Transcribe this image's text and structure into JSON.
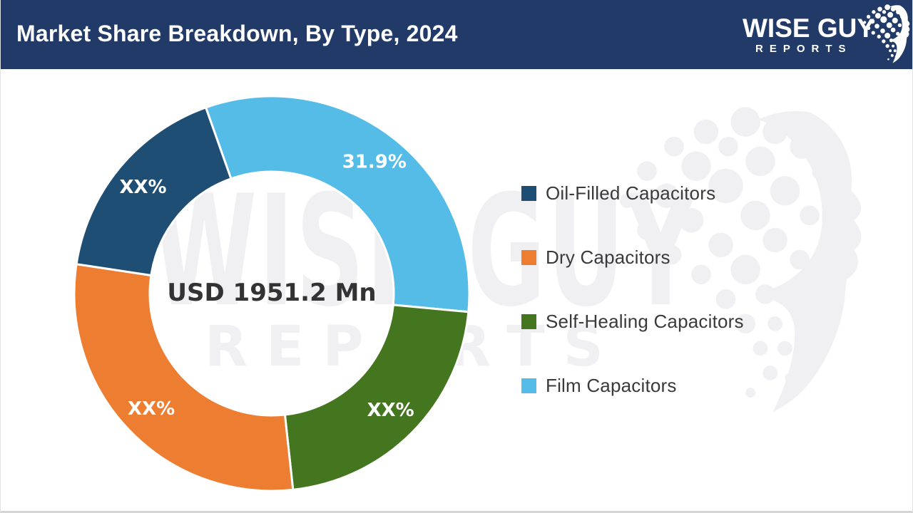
{
  "header": {
    "title": "Market Share Breakdown, By Type, 2024"
  },
  "logo": {
    "name": "WISE GUY",
    "subtitle": "REPORTS"
  },
  "watermark": {
    "line1": "WISE GUY",
    "line2": "REPORTS"
  },
  "chart_data": {
    "type": "donut",
    "title": "Market Share Breakdown, By Type, 2024",
    "center_label": "USD 1951.2 Mn",
    "start_angle_deg": -19.5,
    "legend_position": "right",
    "segments": [
      {
        "name": "Film Capacitors",
        "value_pct": 31.9,
        "label": "31.9%",
        "color": "#54BCE6"
      },
      {
        "name": "Self-Healing Capacitors",
        "value_pct": 21.8,
        "label": "XX%",
        "color": "#44761F"
      },
      {
        "name": "Dry Capacitors",
        "value_pct": 29.1,
        "label": "XX%",
        "color": "#ED7D31"
      },
      {
        "name": "Oil-Filled Capacitors",
        "value_pct": 17.2,
        "label": "XX%",
        "color": "#1F4E74"
      }
    ]
  },
  "legend": {
    "items": [
      {
        "label": "Oil-Filled Capacitors",
        "color": "#1F4E74"
      },
      {
        "label": "Dry Capacitors",
        "color": "#ED7D31"
      },
      {
        "label": "Self-Healing Capacitors",
        "color": "#44761F"
      },
      {
        "label": "Film Capacitors",
        "color": "#54BCE6"
      }
    ]
  },
  "colors": {
    "header_bg": "#223A68",
    "watermark": "#F0F0F3",
    "slice_label_text": "#FFFFFF",
    "center_text": "#333333",
    "legend_text": "#3A3A3A",
    "slice_separator": "#FFFFFF"
  }
}
